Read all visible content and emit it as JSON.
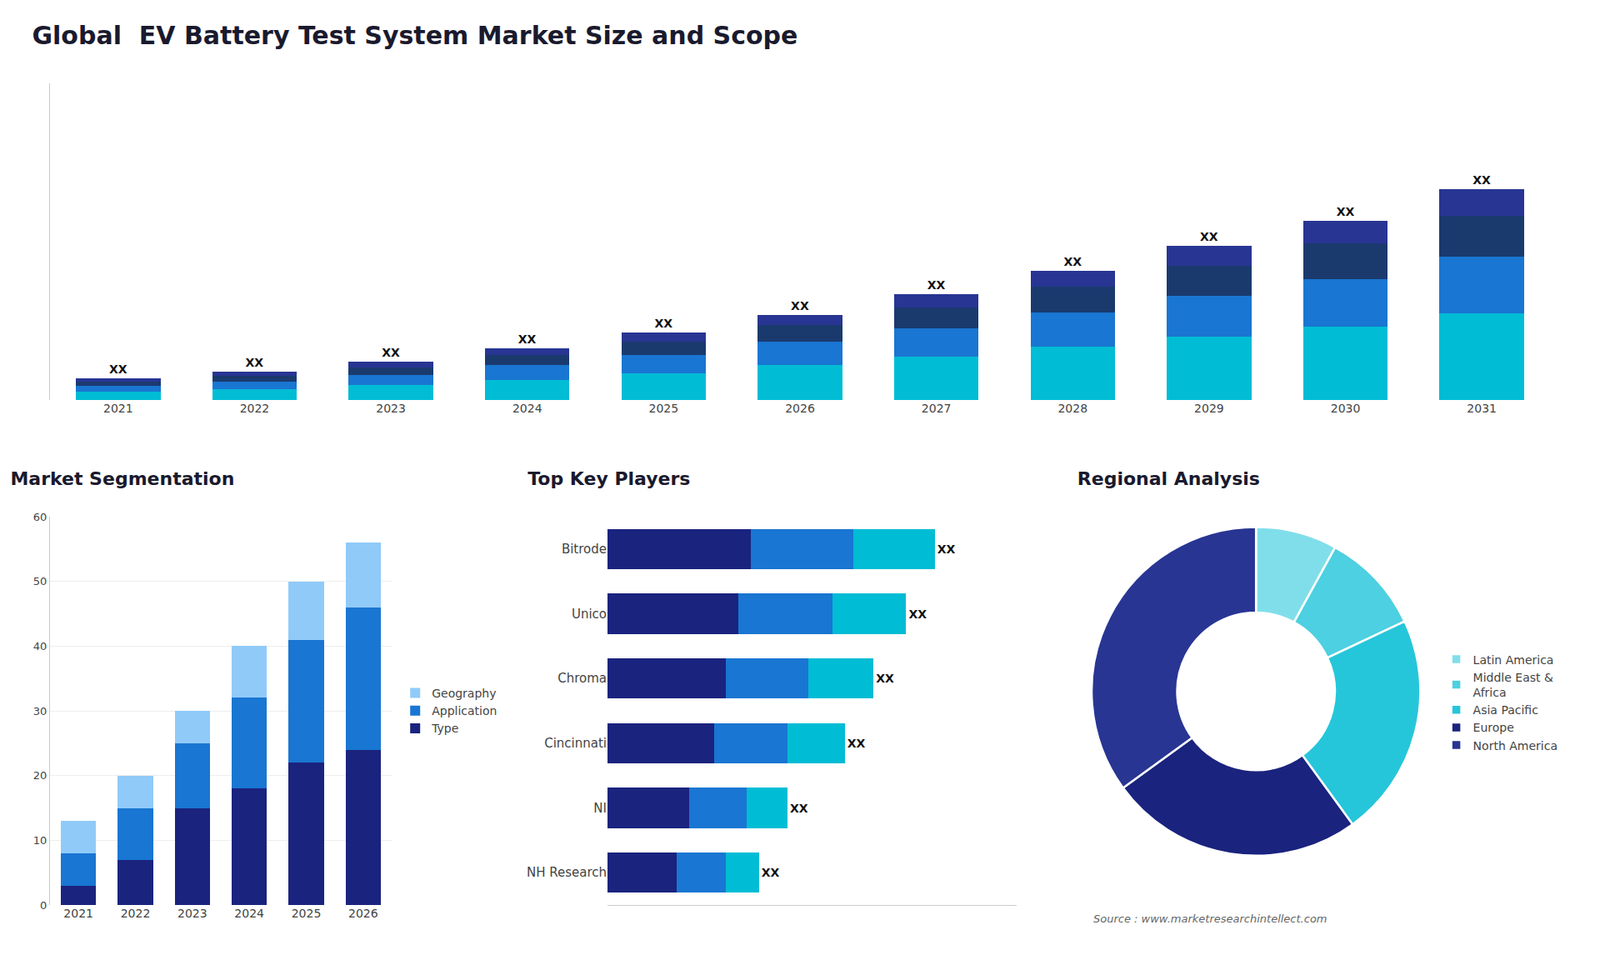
{
  "chart_data": [
    {
      "type": "bar",
      "title": "Global  EV Battery Test System Market Size and Scope",
      "categories": [
        "2021",
        "2022",
        "2023",
        "2024",
        "2025",
        "2026",
        "2027",
        "2028",
        "2029",
        "2030",
        "2031"
      ],
      "stacked": true,
      "series": [
        {
          "color": "#00bcd4",
          "values": [
            1.2,
            1.6,
            2.2,
            3.0,
            4.0,
            5.2,
            6.5,
            8.0,
            9.5,
            11.0,
            13.0
          ]
        },
        {
          "color": "#1976d2",
          "values": [
            0.9,
            1.2,
            1.6,
            2.2,
            2.8,
            3.5,
            4.3,
            5.2,
            6.2,
            7.2,
            8.5
          ]
        },
        {
          "color": "#1a3a6e",
          "values": [
            0.6,
            0.8,
            1.1,
            1.5,
            2.0,
            2.5,
            3.1,
            3.8,
            4.5,
            5.3,
            6.2
          ]
        },
        {
          "color": "#283593",
          "values": [
            0.5,
            0.6,
            0.8,
            1.0,
            1.3,
            1.6,
            2.0,
            2.4,
            2.9,
            3.4,
            4.0
          ]
        }
      ],
      "annotations": [
        "XX",
        "XX",
        "XX",
        "XX",
        "XX",
        "XX",
        "XX",
        "XX",
        "XX",
        "XX",
        "XX"
      ],
      "ylim": [
        0,
        47.55
      ],
      "tick_labels": "x",
      "grid": false
    },
    {
      "type": "bar",
      "title": "Market Segmentation",
      "categories": [
        "2021",
        "2022",
        "2023",
        "2024",
        "2025",
        "2026"
      ],
      "stacked": true,
      "series": [
        {
          "name": "Type",
          "color": "#1a237e",
          "values": [
            3,
            7,
            15,
            18,
            22,
            24
          ]
        },
        {
          "name": "Application",
          "color": "#1976d2",
          "values": [
            5,
            8,
            10,
            14,
            19,
            22
          ]
        },
        {
          "name": "Geography",
          "color": "#90caf9",
          "values": [
            5,
            5,
            5,
            8,
            9,
            10
          ]
        }
      ],
      "ylim": [
        0,
        60
      ],
      "yticks": [
        0,
        10,
        20,
        30,
        40,
        50,
        60
      ],
      "grid": true,
      "legend": "right"
    },
    {
      "type": "bar",
      "title": "Top Key Players",
      "orientation": "horizontal",
      "stacked": true,
      "categories": [
        "Bitrode",
        "Unico",
        "Chroma",
        "Cincinnati",
        "NI",
        "NH Research"
      ],
      "series": [
        {
          "color": "#1a237e",
          "values": [
            3.5,
            3.2,
            2.9,
            2.6,
            2.0,
            1.7
          ]
        },
        {
          "color": "#1976d2",
          "values": [
            2.5,
            2.3,
            2.0,
            1.8,
            1.4,
            1.2
          ]
        },
        {
          "color": "#00bcd4",
          "values": [
            2.0,
            1.8,
            1.6,
            1.4,
            1.0,
            0.8
          ]
        }
      ],
      "annotations": [
        "XX",
        "XX",
        "XX",
        "XX",
        "XX",
        "XX"
      ],
      "xlim": [
        0,
        10
      ],
      "tick_labels": "y",
      "grid": false
    },
    {
      "type": "pie",
      "title": "Regional Analysis",
      "categories": [
        "Latin America",
        "Middle East &\nAfrica",
        "Asia Pacific",
        "Europe",
        "North America"
      ],
      "values": [
        8,
        10,
        22,
        25,
        35
      ],
      "colors": [
        "#80deea",
        "#4dd0e1",
        "#26c6da",
        "#1a237e",
        "#283593"
      ],
      "legend": "right",
      "annotations": [
        "Source : www.marketresearchintellect.com"
      ]
    }
  ]
}
